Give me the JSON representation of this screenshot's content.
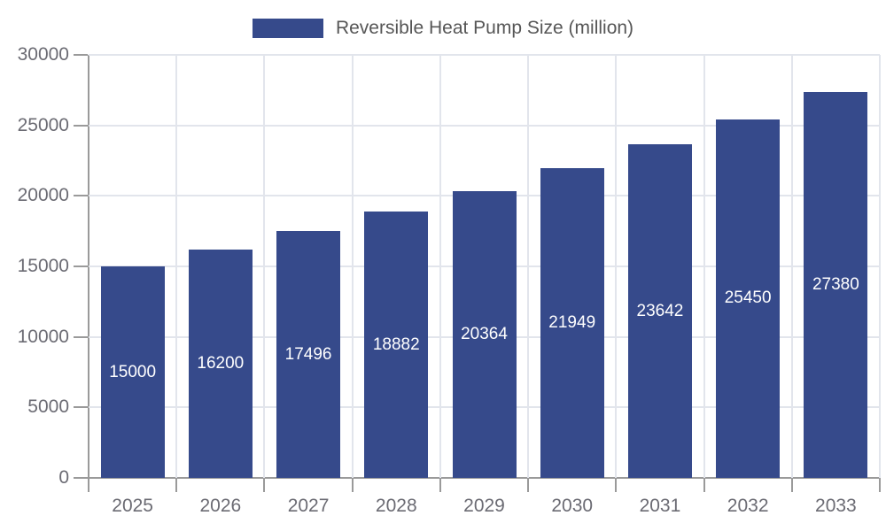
{
  "legend": {
    "label": "Reversible Heat Pump Size (million)"
  },
  "chart_data": {
    "type": "bar",
    "title": "Reversible Heat Pump Size (million)",
    "categories": [
      "2025",
      "2026",
      "2027",
      "2028",
      "2029",
      "2030",
      "2031",
      "2032",
      "2033"
    ],
    "values": [
      15000,
      16200,
      17496,
      18882,
      20364,
      21949,
      23642,
      25450,
      27380
    ],
    "xlabel": "",
    "ylabel": "",
    "ylim": [
      0,
      30000
    ],
    "yticks": [
      0,
      5000,
      10000,
      15000,
      20000,
      25000,
      30000
    ],
    "grid": true,
    "legend_position": "top-center",
    "value_labels": "inside-center",
    "colors": {
      "bar": "#364A8B",
      "grid": "#E2E5EC",
      "axis": "#9A9A9A",
      "tick_text": "#6B6B73",
      "legend_text": "#565656",
      "value_text": "#FFFFFF",
      "background": "#FFFFFF"
    }
  }
}
